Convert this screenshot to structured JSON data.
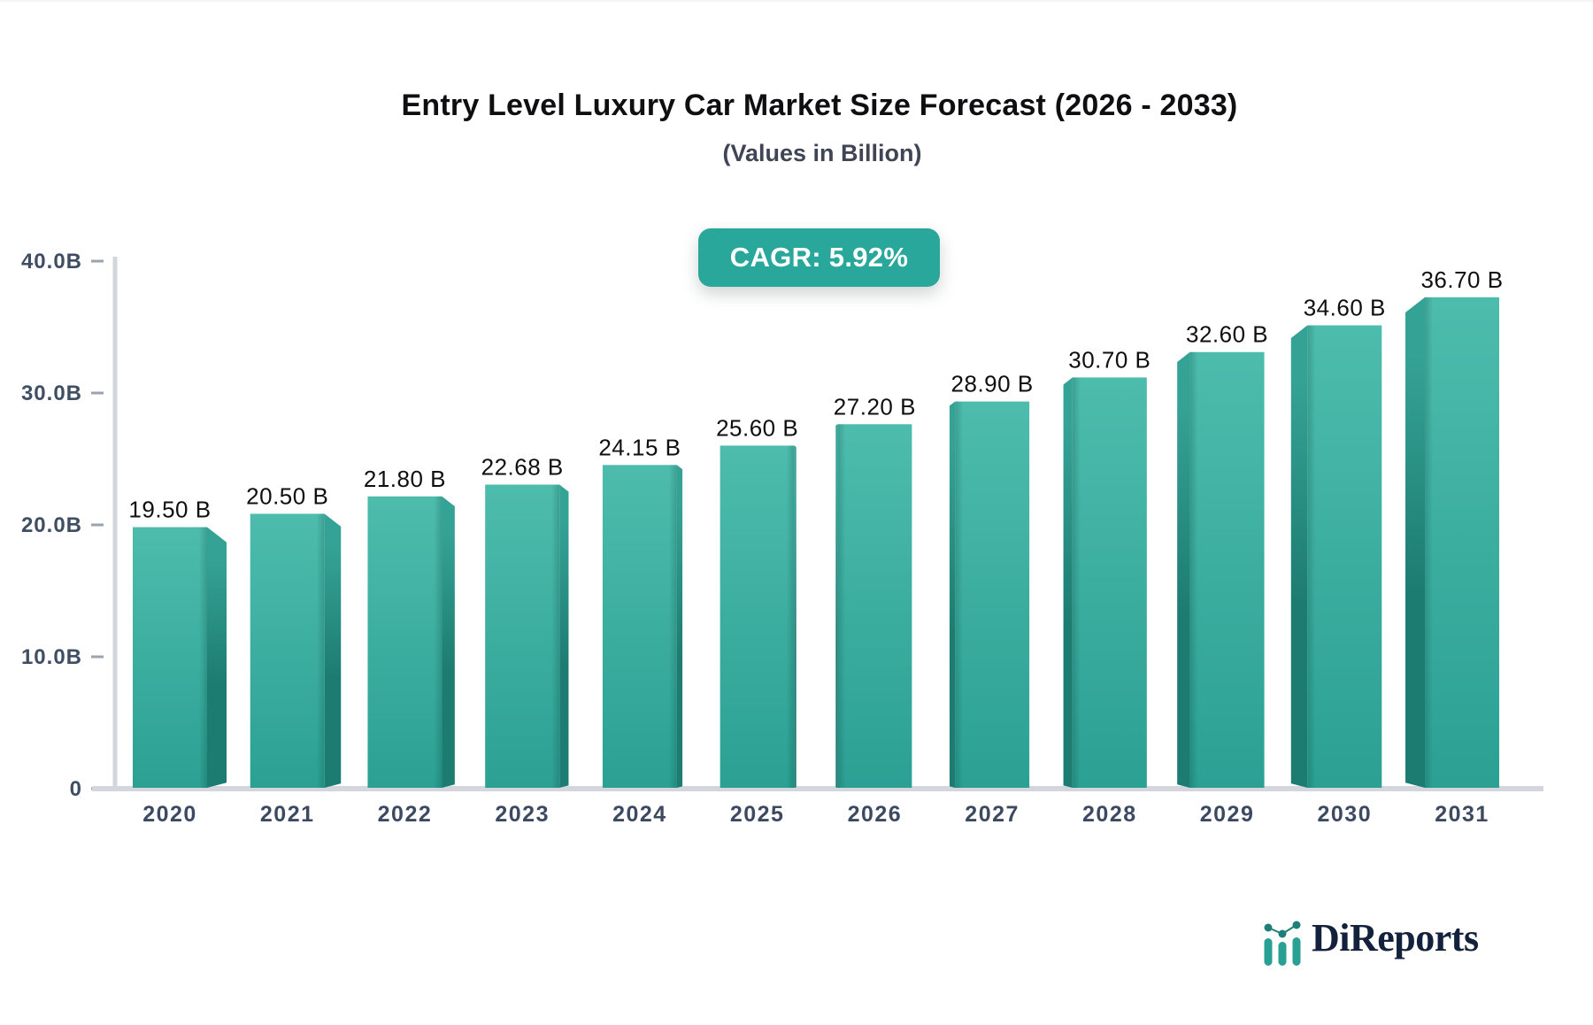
{
  "header": {
    "title": "Entry Level Luxury Car Market Size Forecast (2026 - 2033)",
    "subtitle": "(Values in Billion)"
  },
  "badge": {
    "label": "CAGR: 5.92%"
  },
  "branding": {
    "logo_text": "DiReports",
    "logo_icon": "mini-bar-line-chart-icon"
  },
  "chart_data": {
    "type": "bar",
    "title": "Entry Level Luxury Car Market Size Forecast (2026 - 2033)",
    "subtitle": "(Values in Billion)",
    "annotations": [
      "CAGR: 5.92%"
    ],
    "categories": [
      "2020",
      "2021",
      "2022",
      "2023",
      "2024",
      "2025",
      "2026",
      "2027",
      "2028",
      "2029",
      "2030",
      "2031"
    ],
    "values": [
      19.5,
      20.5,
      21.8,
      22.68,
      24.15,
      25.6,
      27.2,
      28.9,
      30.7,
      32.6,
      34.6,
      36.7
    ],
    "value_labels": [
      "19.50 B",
      "20.50 B",
      "21.80 B",
      "22.68 B",
      "24.15 B",
      "25.60 B",
      "27.20 B",
      "28.90 B",
      "30.70 B",
      "32.60 B",
      "34.60 B",
      "36.70 B"
    ],
    "xlabel": "",
    "ylabel": "",
    "ylim": [
      0,
      40
    ],
    "yticks": {
      "values": [
        0,
        10,
        20,
        30,
        40
      ],
      "labels": [
        "0",
        "10.0B",
        "20.0B",
        "30.0B",
        "40.0B"
      ]
    },
    "grid": "off",
    "legend": "none",
    "style": "pseudo-3d-perspective-columns",
    "colors": {
      "bar_front_top": "#4dbcad",
      "bar_front_bottom": "#2ba093",
      "bar_side_top": "#35a296",
      "bar_side_bottom": "#1d7c71",
      "badge_bg": "#2aa79b",
      "axis_line": "#d4d6dd",
      "tick_mark": "#9aa3ae",
      "y_label": "#404e63",
      "x_label": "#3c4961",
      "value_label": "#0f0f0f",
      "title": "#0f0f12",
      "subtitle": "#3f4554",
      "logo_teal": "#2aa095",
      "logo_dark_teal": "#1e7f78",
      "logo_navy": "#14213c"
    }
  }
}
